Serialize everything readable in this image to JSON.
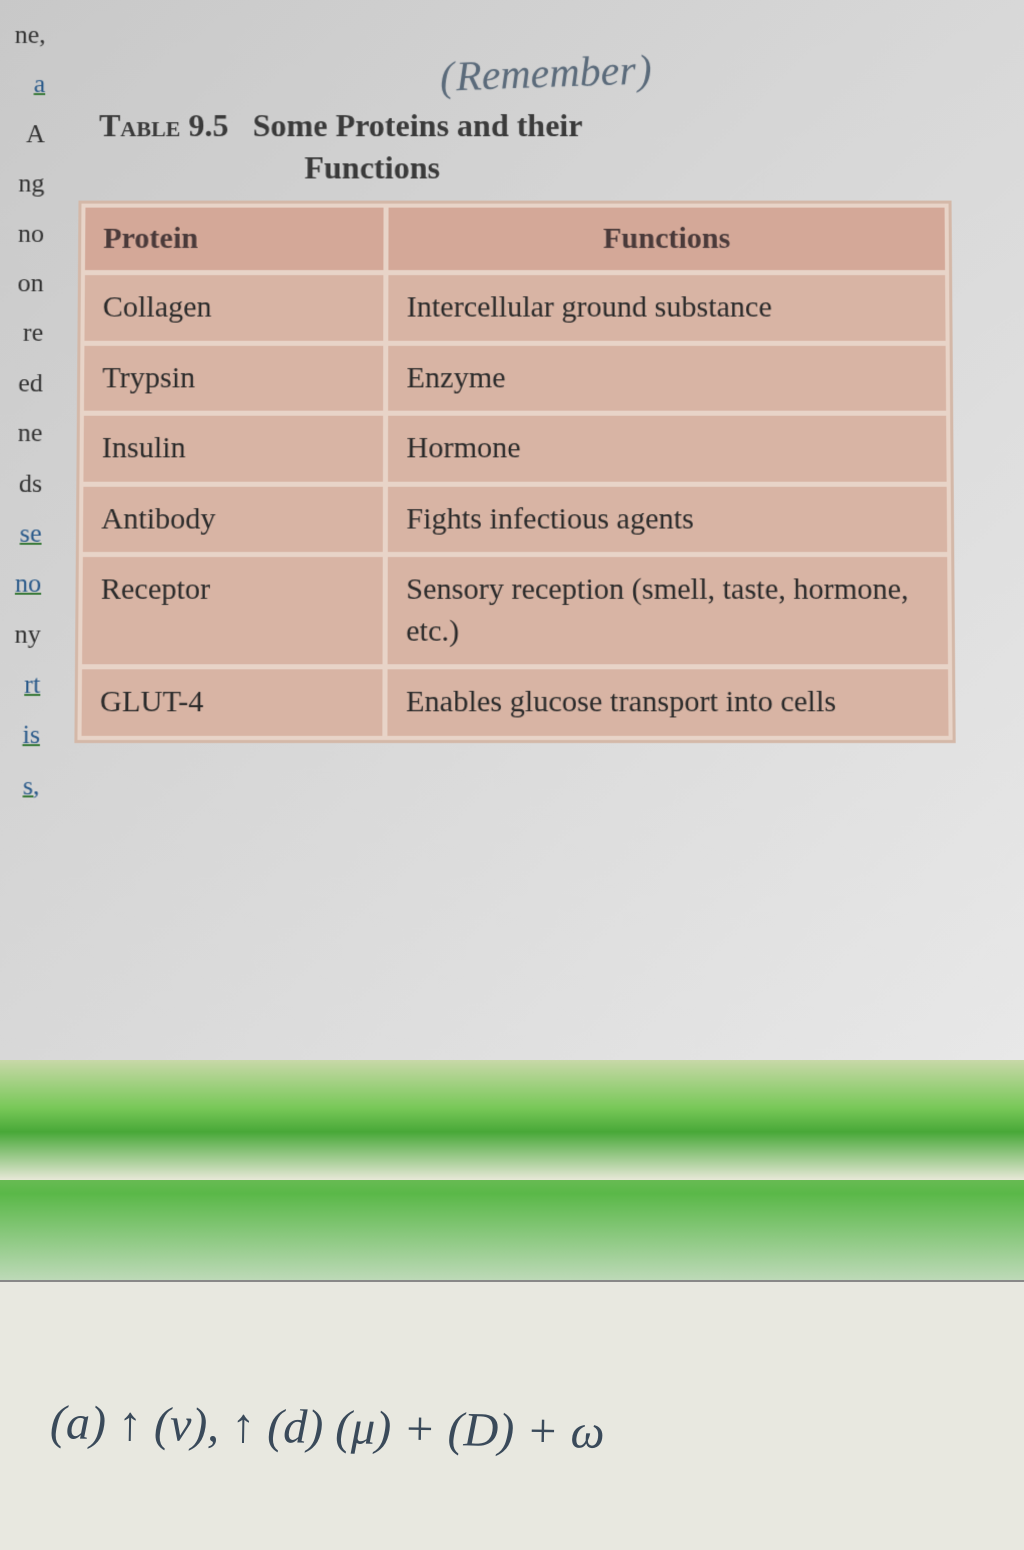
{
  "left_margin": {
    "fragments": [
      {
        "text": "ne,",
        "underlined": false
      },
      {
        "text": "a",
        "underlined": true
      },
      {
        "text": "A",
        "underlined": false
      },
      {
        "text": "ng",
        "underlined": false
      },
      {
        "text": "no",
        "underlined": false
      },
      {
        "text": "on",
        "underlined": false
      },
      {
        "text": "re",
        "underlined": false
      },
      {
        "text": "ed",
        "underlined": false
      },
      {
        "text": "ne",
        "underlined": false
      },
      {
        "text": "ds",
        "underlined": false
      },
      {
        "text": "se",
        "underlined": true
      },
      {
        "text": "no",
        "underlined": true
      },
      {
        "text": "ny",
        "underlined": false
      },
      {
        "text": "rt",
        "underlined": true
      },
      {
        "text": "is",
        "underlined": true
      },
      {
        "text": "s,",
        "underlined": true
      }
    ]
  },
  "handwritten_note": "Remember",
  "title": {
    "label": "Table 9.5",
    "subtitle_line1": "Some Proteins and their",
    "subtitle_line2": "Functions"
  },
  "table": {
    "type": "table",
    "columns": [
      "Protein",
      "Functions"
    ],
    "rows": [
      [
        "Collagen",
        "Intercellular ground substance"
      ],
      [
        "Trypsin",
        "Enzyme"
      ],
      [
        "Insulin",
        "Hormone"
      ],
      [
        "Antibody",
        "Fights infectious agents"
      ],
      [
        "Receptor",
        "Sensory reception (smell, taste, hormone, etc.)"
      ],
      [
        "GLUT-4",
        "Enables glucose transport into cells"
      ]
    ],
    "header_bg": "#d4a898",
    "cell_bg": "#d8b4a4",
    "border_color": "#e8d4c8",
    "header_fontsize": 30,
    "cell_fontsize": 30,
    "col_widths": [
      "35%",
      "65%"
    ]
  },
  "notebook_scribble": "(a) ↑ (v), ↑ (d) (μ) + (D) + ω"
}
